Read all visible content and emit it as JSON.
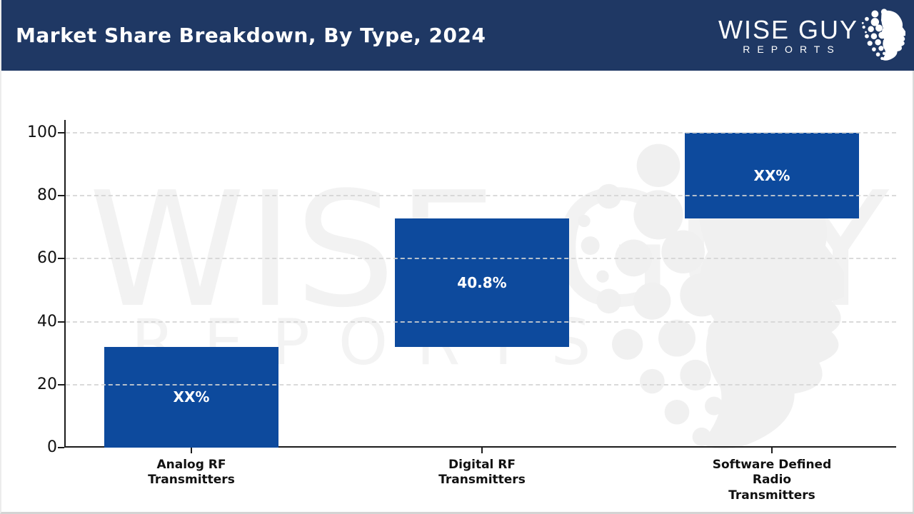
{
  "header": {
    "title": "Market Share Breakdown, By Type, 2024",
    "logo": {
      "line1": "WISE GUY",
      "line2": "REPORTS"
    }
  },
  "watermark": {
    "line1": "WISE GUY",
    "line2": "REPORTS"
  },
  "colors": {
    "header_bg": "#1f3864",
    "bar": "#0d4a9d",
    "bar_label": "#ffffff",
    "axis": "#1c1c1c",
    "gridline": "#d4d4d4",
    "watermark": "#f2f2f2"
  },
  "chart_data": {
    "type": "bar",
    "subtype": "waterfall",
    "title": "Market Share Breakdown, By Type, 2024",
    "categories": [
      "Analog RF\nTransmitters",
      "Digital RF\nTransmitters",
      "Software Defined\nRadio Transmitters"
    ],
    "series": [
      {
        "name": "Analog RF Transmitters",
        "start": 0,
        "end": 32,
        "label": "XX%"
      },
      {
        "name": "Digital RF Transmitters",
        "start": 32,
        "end": 72.8,
        "label": "40.8%"
      },
      {
        "name": "Software Defined Radio Transmitters",
        "start": 72.8,
        "end": 100,
        "label": "XX%"
      }
    ],
    "ylim": [
      0,
      100
    ],
    "yticks": [
      0,
      20,
      40,
      60,
      80,
      100
    ],
    "grid": "horizontal-dashed",
    "legend": "none",
    "xlabel": "",
    "ylabel": ""
  }
}
